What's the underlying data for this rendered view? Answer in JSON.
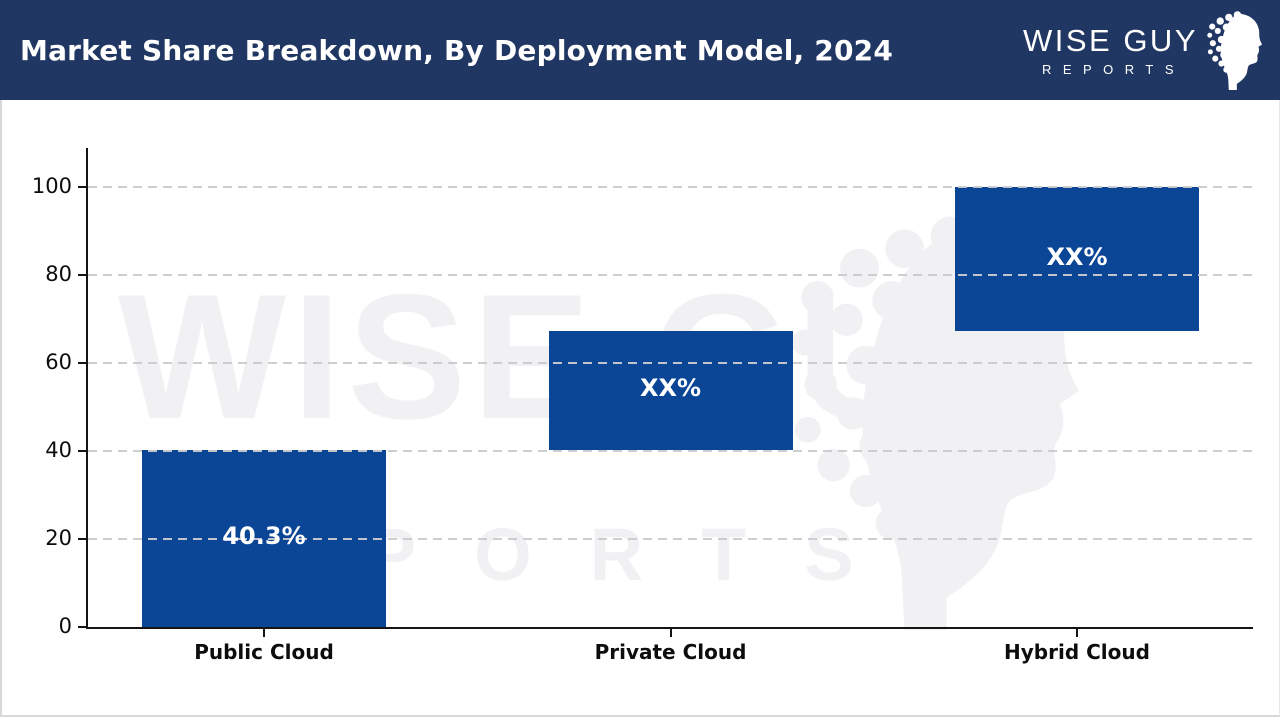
{
  "header": {
    "title": "Market Share Breakdown, By Deployment Model, 2024",
    "logo": {
      "line1": "WISE GUY",
      "line2": "REPORTS"
    }
  },
  "watermark": {
    "line1": "WISE GUY",
    "line2": "REPORTS"
  },
  "colors": {
    "header_bg": "#213763",
    "bar": "#0a4596",
    "bar_label_text": "#ffffff",
    "grid": "#cbcbce",
    "axis": "#141414",
    "tick_label": "#0d0d0d",
    "watermark": "#f1f1f4",
    "body_border": "#d8d8d8"
  },
  "chart_data": {
    "type": "bar",
    "subtype": "waterfall",
    "title": "Market Share Breakdown, By Deployment Model, 2024",
    "xlabel": "",
    "ylabel": "",
    "categories": [
      "Public Cloud",
      "Private Cloud",
      "Hybrid Cloud"
    ],
    "segments": [
      {
        "category": "Public Cloud",
        "start": 0,
        "end": 40.3,
        "label": "40.3%"
      },
      {
        "category": "Private Cloud",
        "start": 40.3,
        "end": 67.3,
        "label": "XX%"
      },
      {
        "category": "Hybrid Cloud",
        "start": 67.3,
        "end": 100,
        "label": "XX%"
      }
    ],
    "yticks": [
      0,
      20,
      40,
      60,
      80,
      100
    ],
    "ylim": [
      0,
      105
    ],
    "grid": "dashed-horizontal",
    "gridlines_above_bars": true,
    "legend": "none"
  }
}
